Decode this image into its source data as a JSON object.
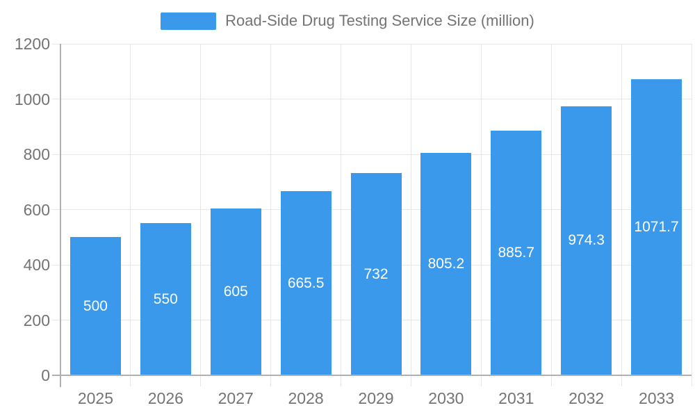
{
  "legend": {
    "label": "Road-Side Drug Testing Service Size (million)"
  },
  "colors": {
    "bar": "#3b99ec",
    "grid_line": "#e6e6e6",
    "axis_line": "#b0b0b0",
    "tick_text": "#747474",
    "bar_label": "#ffffff",
    "background": "#ffffff"
  },
  "chart_data": {
    "type": "bar",
    "title": "Road-Side Drug Testing Service Size (million)",
    "categories": [
      "2025",
      "2026",
      "2027",
      "2028",
      "2029",
      "2030",
      "2031",
      "2032",
      "2033"
    ],
    "values": [
      500,
      550,
      605,
      665.5,
      732,
      805.2,
      885.7,
      974.3,
      1071.7
    ],
    "value_labels": [
      "500",
      "550",
      "605",
      "665.5",
      "732",
      "805.2",
      "885.7",
      "974.3",
      "1071.7"
    ],
    "xlabel": "",
    "ylabel": "",
    "ylim": [
      0,
      1200
    ],
    "yticks": [
      0,
      200,
      400,
      600,
      800,
      1000,
      1200
    ],
    "grid": true,
    "legend_position": "top-center",
    "bar_label_position": "inside-center"
  }
}
